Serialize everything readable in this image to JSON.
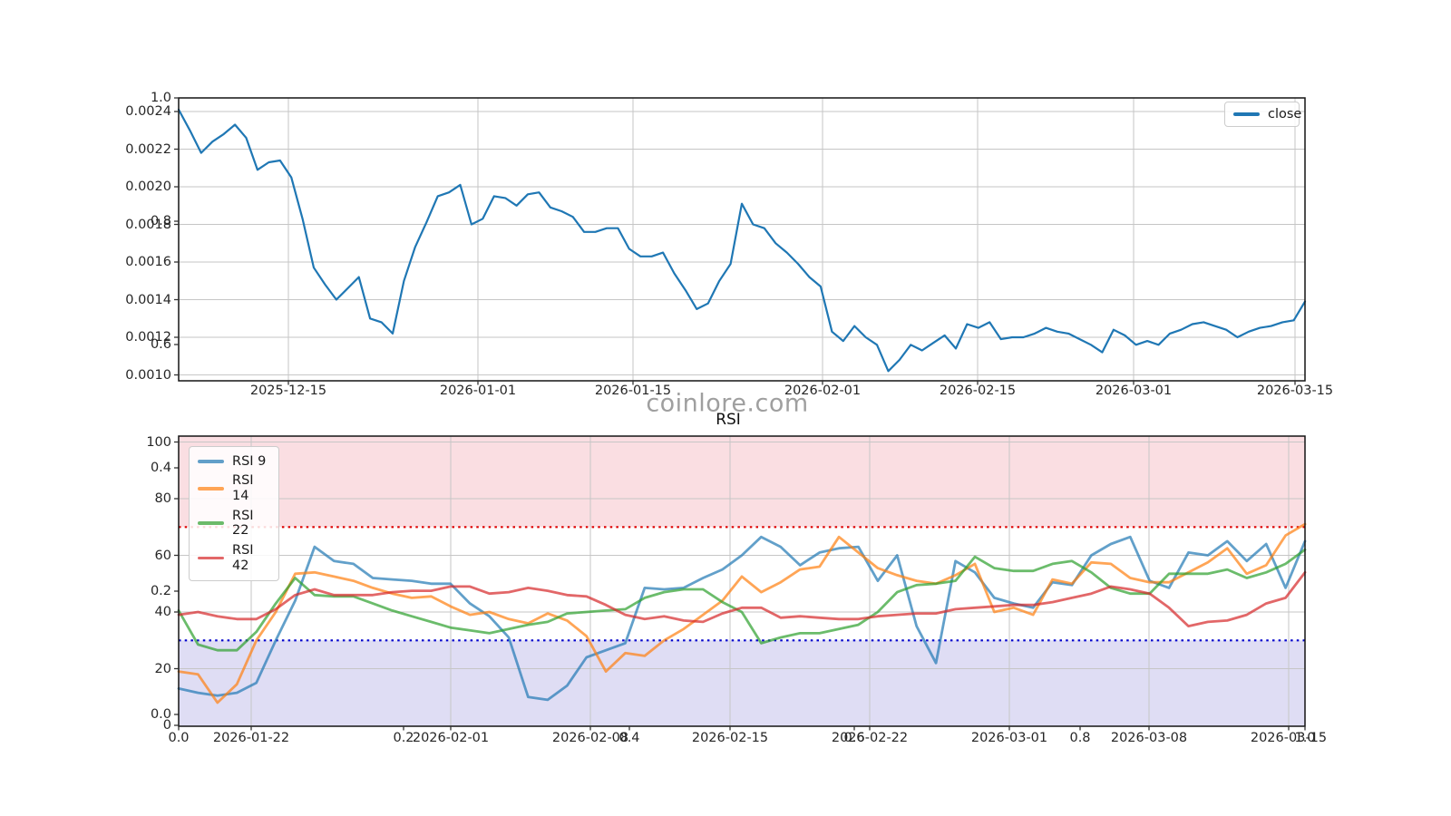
{
  "watermark": "coinlore.com",
  "chart_data": [
    {
      "type": "line",
      "name": "price-close-chart",
      "title": "",
      "x_start": "2025-12-05",
      "x_end": "2026-03-15",
      "x_interval_days": 1,
      "xticks": [
        "2025-12-15",
        "2026-01-01",
        "2026-01-15",
        "2026-02-01",
        "2026-02-15",
        "2026-03-01",
        "2026-03-15"
      ],
      "yticks": [
        "0.0010",
        "0.0012",
        "0.0014",
        "0.0016",
        "0.0018",
        "0.0020",
        "0.0022",
        "0.0024"
      ],
      "overlay_yticks": [
        "1.0",
        "0.8",
        "0.6"
      ],
      "ylim": [
        0.000969,
        0.002472
      ],
      "grid": true,
      "legend_position": "upper right",
      "series": [
        {
          "name": "close",
          "color": "#1f77b4",
          "values": [
            0.00241,
            0.0023,
            0.00218,
            0.00224,
            0.00228,
            0.00233,
            0.00226,
            0.00209,
            0.00213,
            0.00214,
            0.00205,
            0.00183,
            0.00157,
            0.00148,
            0.0014,
            0.00146,
            0.00152,
            0.0013,
            0.00128,
            0.00122,
            0.0015,
            0.00168,
            0.00181,
            0.00195,
            0.00197,
            0.00201,
            0.0018,
            0.00183,
            0.00195,
            0.00194,
            0.0019,
            0.00196,
            0.00197,
            0.00189,
            0.00187,
            0.00184,
            0.00176,
            0.00176,
            0.00178,
            0.00178,
            0.00167,
            0.00163,
            0.00163,
            0.00165,
            0.00154,
            0.00145,
            0.00135,
            0.00138,
            0.0015,
            0.00159,
            0.00191,
            0.0018,
            0.00178,
            0.0017,
            0.00165,
            0.00159,
            0.00152,
            0.00147,
            0.00123,
            0.00118,
            0.00126,
            0.0012,
            0.00116,
            0.00102,
            0.00108,
            0.00116,
            0.00113,
            0.00117,
            0.00121,
            0.00114,
            0.00127,
            0.00125,
            0.00128,
            0.00119,
            0.0012,
            0.0012,
            0.00122,
            0.00125,
            0.00123,
            0.00122,
            0.00119,
            0.00116,
            0.00112,
            0.00124,
            0.00121,
            0.00116,
            0.00118,
            0.00116,
            0.00122,
            0.00124,
            0.00127,
            0.00128,
            0.00126,
            0.00124,
            0.0012,
            0.00123,
            0.00125,
            0.00126,
            0.00128,
            0.00129,
            0.00139
          ]
        }
      ]
    },
    {
      "type": "line",
      "name": "rsi-chart",
      "title": "RSI",
      "x_start": "2026-01-18",
      "x_end": "2026-03-15",
      "x_interval_days": 1,
      "xticks": [
        "2026-01-22",
        "2026-02-01",
        "2026-02-08",
        "2026-02-15",
        "2026-02-22",
        "2026-03-01",
        "2026-03-08",
        "2026-03-15"
      ],
      "overlay_xticks": [
        "0.0",
        "0.2",
        "0.4",
        "0.6",
        "0.8",
        "1.0"
      ],
      "yticks": [
        "100",
        "80",
        "60",
        "40",
        "20",
        "0"
      ],
      "overlay_yticks": [
        "0.4",
        "0.2",
        "0.0"
      ],
      "ylim": [
        0,
        105
      ],
      "grid": true,
      "legend_position": "upper left",
      "overbought_level": 70,
      "oversold_level": 30,
      "band_colors": {
        "overbought_fill": "#fadee2",
        "oversold_fill": "#dfddf4"
      },
      "hlines": [
        {
          "value": 70,
          "color": "#dd0000",
          "style": "dotted"
        },
        {
          "value": 30,
          "color": "#0000cc",
          "style": "dotted"
        }
      ],
      "series": [
        {
          "name": "RSI 9",
          "color": "#1f77b4",
          "values": [
            13,
            11.5,
            10.5,
            11.5,
            15,
            30,
            44,
            63,
            58,
            57,
            52,
            51.5,
            51,
            50,
            50,
            43,
            38.5,
            31,
            10,
            9,
            14,
            24,
            26.5,
            29,
            48.5,
            48,
            48.5,
            52,
            55,
            60,
            66.5,
            63,
            56.5,
            61,
            62.5,
            63,
            51,
            60,
            35,
            22,
            58,
            54,
            45,
            43,
            41.5,
            50.5,
            49.5,
            60,
            64,
            66.5,
            51,
            48.5,
            61,
            60,
            65,
            58,
            64,
            48.5,
            65
          ]
        },
        {
          "name": "RSI 14",
          "color": "#ff7f0e",
          "values": [
            19,
            18,
            8,
            14.5,
            30,
            40,
            53.5,
            54,
            52.5,
            51,
            48.5,
            46.5,
            45,
            45.5,
            42,
            39,
            40,
            37.5,
            36,
            39.5,
            37,
            31.5,
            19,
            25.5,
            24.5,
            30,
            34,
            39,
            44,
            52.5,
            47,
            50.5,
            55,
            56,
            66.5,
            61,
            55.5,
            53,
            51,
            50,
            53,
            57,
            40,
            41.5,
            39,
            51.5,
            50,
            57.5,
            57,
            52,
            50.5,
            50.5,
            54,
            57.5,
            62.5,
            53.5,
            56.5,
            67,
            71
          ]
        },
        {
          "name": "RSI 22",
          "color": "#2ca02c",
          "values": [
            40.5,
            28.5,
            26.5,
            26.5,
            33,
            43,
            52,
            46,
            45.5,
            45.5,
            43,
            40.5,
            38.5,
            36.5,
            34.5,
            33.5,
            32.5,
            34,
            35.5,
            36.5,
            39.5,
            40,
            40.5,
            41,
            45,
            47,
            48,
            48,
            43.5,
            40,
            29,
            31,
            32.5,
            32.5,
            34,
            35.5,
            40,
            47,
            49.5,
            50,
            51,
            59.5,
            55.5,
            54.5,
            54.5,
            57,
            58,
            54,
            48.5,
            46.5,
            46.5,
            53.5,
            53.5,
            53.5,
            55,
            52,
            54,
            57,
            62
          ]
        },
        {
          "name": "RSI 42",
          "color": "#d62728",
          "values": [
            39,
            40,
            38.5,
            37.5,
            37.5,
            41,
            46,
            48,
            46,
            46,
            46,
            47,
            47.5,
            47.5,
            49,
            49,
            46.5,
            47,
            48.5,
            47.5,
            46,
            45.5,
            42.5,
            39,
            37.5,
            38.5,
            37,
            36.5,
            39.5,
            41.5,
            41.5,
            38,
            38.5,
            38,
            37.5,
            37.5,
            38.5,
            39,
            39.5,
            39.5,
            41,
            41.5,
            42,
            42.5,
            42.5,
            43.5,
            45,
            46.5,
            49,
            48,
            46.5,
            41.5,
            35,
            36.5,
            37,
            39,
            43,
            45,
            54
          ]
        }
      ]
    }
  ]
}
